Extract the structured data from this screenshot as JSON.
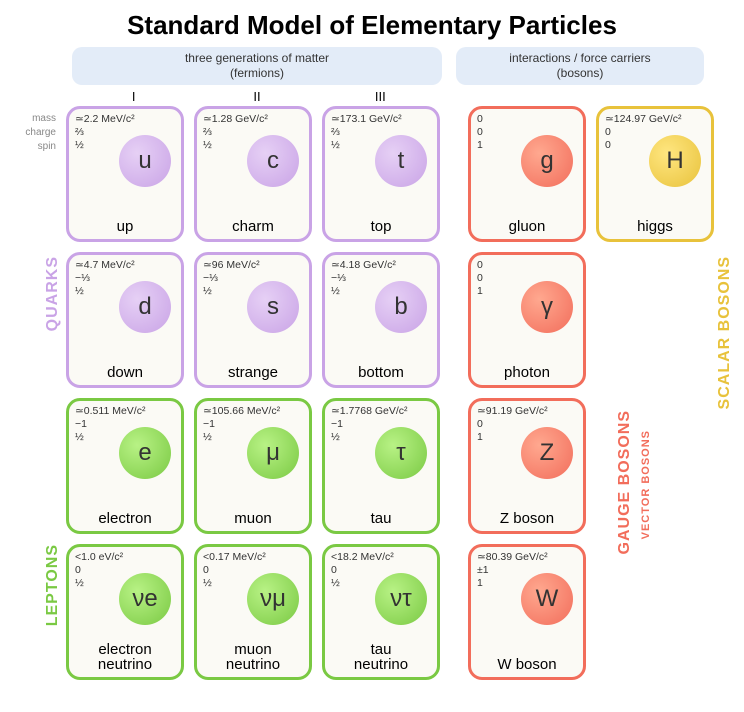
{
  "title": "Standard Model of Elementary Particles",
  "header_fermions": "three generations of matter\n(fermions)",
  "header_bosons": "interactions / force carriers\n(bosons)",
  "generations": [
    "I",
    "II",
    "III"
  ],
  "prop_labels": [
    "mass",
    "charge",
    "spin"
  ],
  "group_labels": {
    "quarks": "QUARKS",
    "leptons": "LEPTONS",
    "gauge": "GAUGE BOSONS",
    "vector": "VECTOR BOSONS",
    "scalar": "SCALAR BOSONS"
  },
  "colors": {
    "quark_border": "#c9a3e6",
    "lepton_border": "#7ac943",
    "gauge_border": "#f26d5b",
    "scalar_border": "#e8c23b",
    "header_pill": "#e3ecf8",
    "tile_bg": "#fbfaf5"
  },
  "particles": {
    "up": {
      "symbol": "u",
      "name": "up",
      "mass": "≃2.2 MeV/c²",
      "charge": "⅔",
      "spin": "½",
      "cls": "quark"
    },
    "charm": {
      "symbol": "c",
      "name": "charm",
      "mass": "≃1.28 GeV/c²",
      "charge": "⅔",
      "spin": "½",
      "cls": "quark"
    },
    "top": {
      "symbol": "t",
      "name": "top",
      "mass": "≃173.1 GeV/c²",
      "charge": "⅔",
      "spin": "½",
      "cls": "quark"
    },
    "gluon": {
      "symbol": "g",
      "name": "gluon",
      "mass": "0",
      "charge": "0",
      "spin": "1",
      "cls": "gauge"
    },
    "higgs": {
      "symbol": "H",
      "name": "higgs",
      "mass": "≃124.97 GeV/c²",
      "charge": "0",
      "spin": "0",
      "cls": "scalar"
    },
    "down": {
      "symbol": "d",
      "name": "down",
      "mass": "≃4.7 MeV/c²",
      "charge": "−⅓",
      "spin": "½",
      "cls": "quark"
    },
    "strange": {
      "symbol": "s",
      "name": "strange",
      "mass": "≃96 MeV/c²",
      "charge": "−⅓",
      "spin": "½",
      "cls": "quark"
    },
    "bottom": {
      "symbol": "b",
      "name": "bottom",
      "mass": "≃4.18 GeV/c²",
      "charge": "−⅓",
      "spin": "½",
      "cls": "quark"
    },
    "photon": {
      "symbol": "γ",
      "name": "photon",
      "mass": "0",
      "charge": "0",
      "spin": "1",
      "cls": "gauge"
    },
    "electron": {
      "symbol": "e",
      "name": "electron",
      "mass": "≃0.511 MeV/c²",
      "charge": "−1",
      "spin": "½",
      "cls": "lepton"
    },
    "muon": {
      "symbol": "μ",
      "name": "muon",
      "mass": "≃105.66 MeV/c²",
      "charge": "−1",
      "spin": "½",
      "cls": "lepton"
    },
    "tau": {
      "symbol": "τ",
      "name": "tau",
      "mass": "≃1.7768 GeV/c²",
      "charge": "−1",
      "spin": "½",
      "cls": "lepton"
    },
    "zboson": {
      "symbol": "Z",
      "name": "Z boson",
      "mass": "≃91.19 GeV/c²",
      "charge": "0",
      "spin": "1",
      "cls": "gauge"
    },
    "nu_e": {
      "symbol": "νe",
      "name": "electron\nneutrino",
      "mass": "<1.0 eV/c²",
      "charge": "0",
      "spin": "½",
      "cls": "lepton"
    },
    "nu_mu": {
      "symbol": "νμ",
      "name": "muon\nneutrino",
      "mass": "<0.17 MeV/c²",
      "charge": "0",
      "spin": "½",
      "cls": "lepton"
    },
    "nu_tau": {
      "symbol": "ντ",
      "name": "tau\nneutrino",
      "mass": "<18.2 MeV/c²",
      "charge": "0",
      "spin": "½",
      "cls": "lepton"
    },
    "wboson": {
      "symbol": "W",
      "name": "W boson",
      "mass": "≃80.39 GeV/c²",
      "charge": "±1",
      "spin": "1",
      "cls": "gauge"
    }
  },
  "layout": [
    [
      "up",
      "charm",
      "top",
      "GAP",
      "gluon",
      "higgs"
    ],
    [
      "down",
      "strange",
      "bottom",
      "GAP",
      "photon",
      null
    ],
    [
      "electron",
      "muon",
      "tau",
      "GAP",
      "zboson",
      null
    ],
    [
      "nu_e",
      "nu_mu",
      "nu_tau",
      "GAP",
      "wboson",
      null
    ]
  ]
}
